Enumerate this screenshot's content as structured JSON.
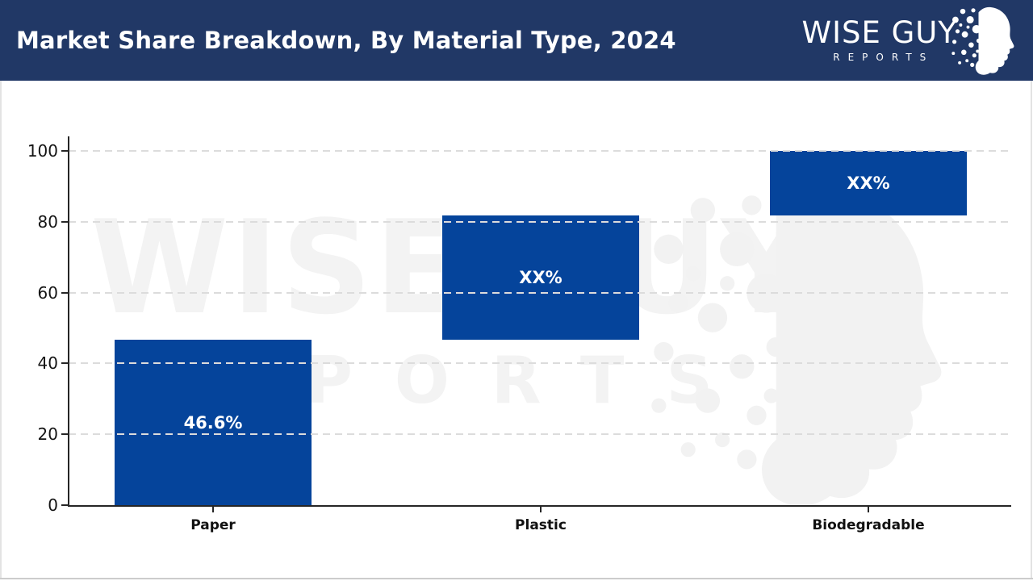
{
  "header": {
    "title": "Market Share Breakdown, By Material Type, 2024",
    "logo": {
      "line1": "WISE GUY",
      "line2": "REPORTS"
    }
  },
  "watermark": {
    "line1": "WISE GUY",
    "line2": "REPORTS"
  },
  "chart_data": {
    "type": "bar",
    "subtype": "waterfall",
    "title": "Market Share Breakdown, By Material Type, 2024",
    "categories": [
      "Paper",
      "Plastic",
      "Biodegradable"
    ],
    "series": [
      {
        "category": "Paper",
        "start": 0,
        "end": 46.6,
        "label": "46.6%"
      },
      {
        "category": "Plastic",
        "start": 46.6,
        "end": 81.8,
        "label": "XX%"
      },
      {
        "category": "Biodegradable",
        "start": 81.8,
        "end": 100,
        "label": "XX%"
      }
    ],
    "yticks": [
      0,
      20,
      40,
      60,
      80,
      100
    ],
    "ylim": [
      0,
      104
    ],
    "xlabel": "",
    "ylabel": "",
    "legend": "none",
    "grid": "horizontal-dashed",
    "bar_color": "#05449b",
    "bar_label_color": "#ffffff"
  },
  "colors": {
    "header_bg": "#213866",
    "title_text": "#ffffff",
    "bar_blue": "#05449b",
    "axis": "#262626",
    "grid": "#dcdcdc",
    "watermark": "#f3f3f3"
  }
}
